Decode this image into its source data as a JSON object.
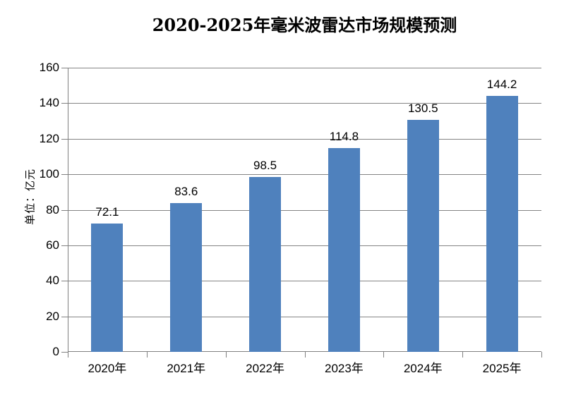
{
  "chart_data": {
    "type": "bar",
    "title": "2020-2025年毫米波雷达市场规模预测",
    "ylabel": "单位：亿元",
    "xlabel": "",
    "categories": [
      "2020年",
      "2021年",
      "2022年",
      "2023年",
      "2024年",
      "2025年"
    ],
    "values": [
      72.1,
      83.6,
      98.5,
      114.8,
      130.5,
      144.2
    ],
    "data_labels": [
      "72.1",
      "83.6",
      "98.5",
      "114.8",
      "130.5",
      "144.2"
    ],
    "ylim": [
      0,
      160
    ],
    "yticks": [
      0,
      20,
      40,
      60,
      80,
      100,
      120,
      140,
      160
    ],
    "grid": true,
    "legend_position": "none",
    "bar_color": "#4F81BD",
    "gridline_color": "#848484",
    "axis_color": "#808080",
    "text_color": "#000000",
    "background_color": "#FFFFFF"
  }
}
